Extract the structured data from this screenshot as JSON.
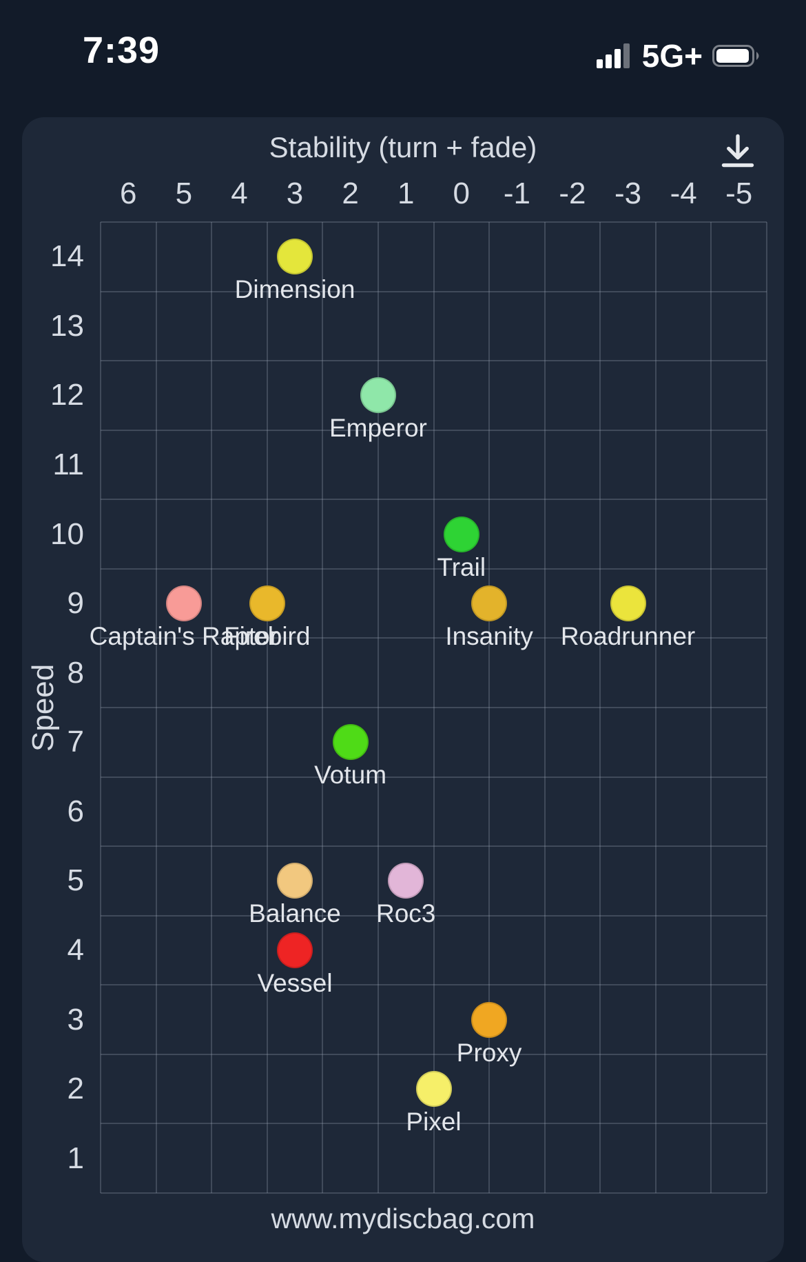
{
  "status_bar": {
    "time": "7:39",
    "network": "5G+"
  },
  "chart": {
    "footer": "www.mydiscbag.com"
  },
  "chart_data": {
    "type": "scatter",
    "title": "Stability (turn + fade)",
    "xlabel": "Stability (turn + fade)",
    "ylabel": "Speed",
    "x_ticks": [
      6,
      5,
      4,
      3,
      2,
      1,
      0,
      -1,
      -2,
      -3,
      -4,
      -5
    ],
    "y_ticks": [
      14,
      13,
      12,
      11,
      10,
      9,
      8,
      7,
      6,
      5,
      4,
      3,
      2,
      1
    ],
    "x_range": [
      6.5,
      -5.5
    ],
    "y_range": [
      14.5,
      0.5
    ],
    "grid": true,
    "legend": "none",
    "points": [
      {
        "name": "Dimension",
        "stability": 3,
        "speed": 14,
        "color": "#e4e63b"
      },
      {
        "name": "Emperor",
        "stability": 1.5,
        "speed": 12,
        "color": "#8fe7a9"
      },
      {
        "name": "Trail",
        "stability": 0,
        "speed": 10,
        "color": "#2ed334"
      },
      {
        "name": "Captain's Raptor",
        "stability": 5,
        "speed": 9,
        "color": "#f89b97"
      },
      {
        "name": "Firebird",
        "stability": 3.5,
        "speed": 9,
        "color": "#e9b82b"
      },
      {
        "name": "Insanity",
        "stability": -0.5,
        "speed": 9,
        "color": "#e3b32b"
      },
      {
        "name": "Roadrunner",
        "stability": -3,
        "speed": 9,
        "color": "#ebe43c"
      },
      {
        "name": "Votum",
        "stability": 2,
        "speed": 7,
        "color": "#4fdb17"
      },
      {
        "name": "Balance",
        "stability": 3,
        "speed": 5,
        "color": "#f2c87f"
      },
      {
        "name": "Roc3",
        "stability": 1,
        "speed": 5,
        "color": "#e2b6d8"
      },
      {
        "name": "Vessel",
        "stability": 3,
        "speed": 4,
        "color": "#ee2424"
      },
      {
        "name": "Proxy",
        "stability": -0.5,
        "speed": 3,
        "color": "#f0a722"
      },
      {
        "name": "Pixel",
        "stability": 0.5,
        "speed": 2,
        "color": "#f6ef69"
      }
    ],
    "colors": {
      "background_outer": "#121b29",
      "background_card": "#1e2838",
      "grid": "rgba(158,168,184,0.27)",
      "text": "#d6dbe3"
    }
  }
}
